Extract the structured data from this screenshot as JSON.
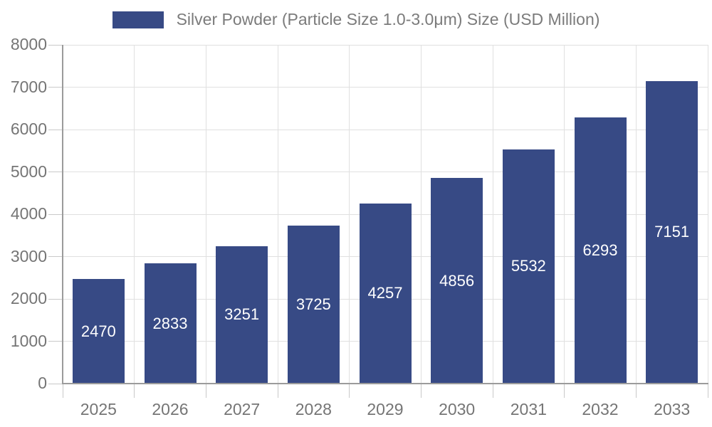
{
  "legend": {
    "label": "Silver Powder (Particle Size 1.0-3.0μm) Size (USD Million)"
  },
  "chart_data": {
    "type": "bar",
    "title": "Silver Powder (Particle Size 1.0-3.0μm) Size (USD Million)",
    "legend_entries": [
      "Silver Powder (Particle Size 1.0-3.0μm) Size (USD Million)"
    ],
    "legend_position": "top-center",
    "categories": [
      "2025",
      "2026",
      "2027",
      "2028",
      "2029",
      "2030",
      "2031",
      "2032",
      "2033"
    ],
    "series": [
      {
        "name": "Silver Powder (Particle Size 1.0-3.0μm) Size (USD Million)",
        "values": [
          2470,
          2833,
          3251,
          3725,
          4257,
          4856,
          5532,
          6293,
          7151
        ]
      }
    ],
    "bar_value_labels": [
      "2470",
      "2833",
      "3251",
      "3725",
      "4257",
      "4856",
      "5532",
      "6293",
      "7151"
    ],
    "xlabel": "",
    "ylabel": "",
    "ylim": [
      0,
      8000
    ],
    "ytick_interval": 1000,
    "ytick_labels": [
      "0",
      "1000",
      "2000",
      "3000",
      "4000",
      "5000",
      "6000",
      "7000",
      "8000"
    ],
    "grid": true,
    "colors": {
      "bar_fill": "#374a85",
      "bar_value_text": "#ffffff",
      "gridline": "#e0e0e0",
      "axis_line": "#9b9b9b",
      "axis_tick": "#c9c9c9",
      "axis_text": "#757575",
      "legend_text": "#7b7b7b",
      "background": "#ffffff"
    }
  }
}
